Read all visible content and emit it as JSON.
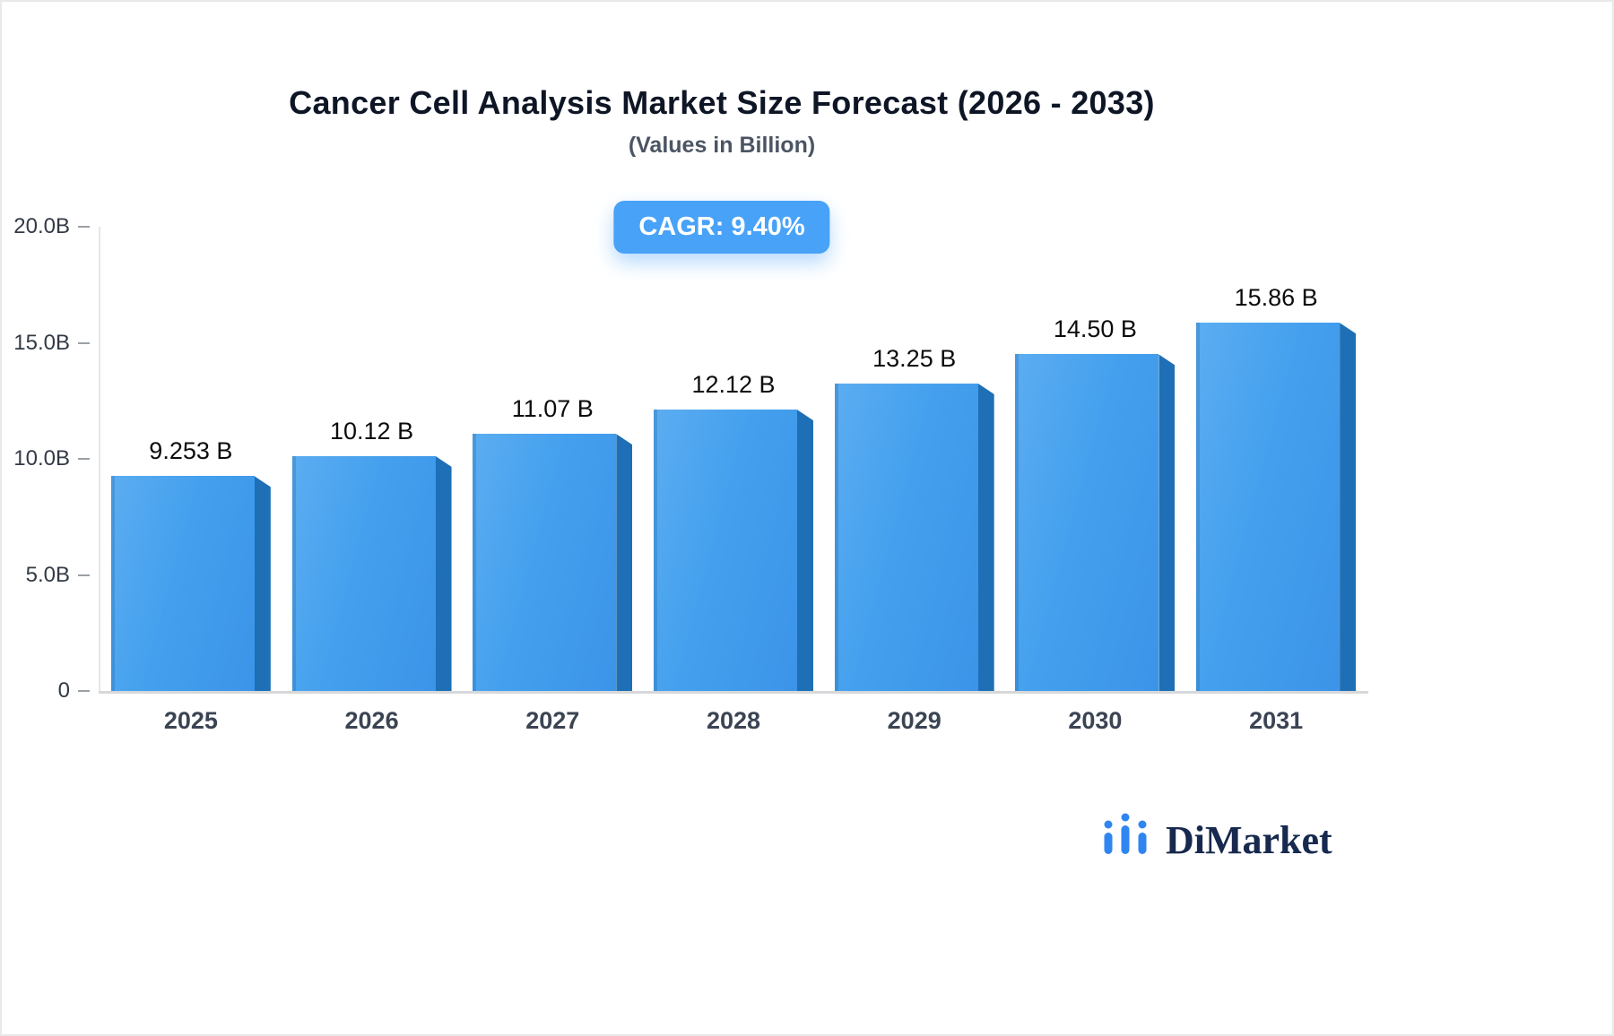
{
  "header": {
    "title": "Cancer Cell Analysis Market Size Forecast (2026 - 2033)",
    "subtitle": "(Values in Billion)",
    "cagr_badge": "CAGR: 9.40%"
  },
  "chart_data": {
    "type": "bar",
    "categories": [
      "2025",
      "2026",
      "2027",
      "2028",
      "2029",
      "2030",
      "2031"
    ],
    "values": [
      9.253,
      10.12,
      11.07,
      12.12,
      13.25,
      14.5,
      15.86
    ],
    "value_labels": [
      "9.253 B",
      "10.12 B",
      "11.07 B",
      "12.12 B",
      "13.25 B",
      "14.50 B",
      "15.86 B"
    ],
    "title": "Cancer Cell Analysis Market Size Forecast (2026 - 2033)",
    "xlabel": "",
    "ylabel": "",
    "ylim": [
      0,
      20
    ],
    "yticks": [
      {
        "value": 0,
        "label": "0"
      },
      {
        "value": 5,
        "label": "5.0B"
      },
      {
        "value": 10,
        "label": "10.0B"
      },
      {
        "value": 15,
        "label": "15.0B"
      },
      {
        "value": 20,
        "label": "20.0B"
      }
    ],
    "grid": false,
    "legend": false,
    "bar_color": "#44a0ee",
    "bar_side_color": "#1e6fb5",
    "accent_color": "#48a2f8"
  },
  "logo": {
    "text": "DiMarket",
    "icon": "bar-chart-dots-icon",
    "icon_color": "#2f86f0",
    "text_color": "#17294e"
  }
}
